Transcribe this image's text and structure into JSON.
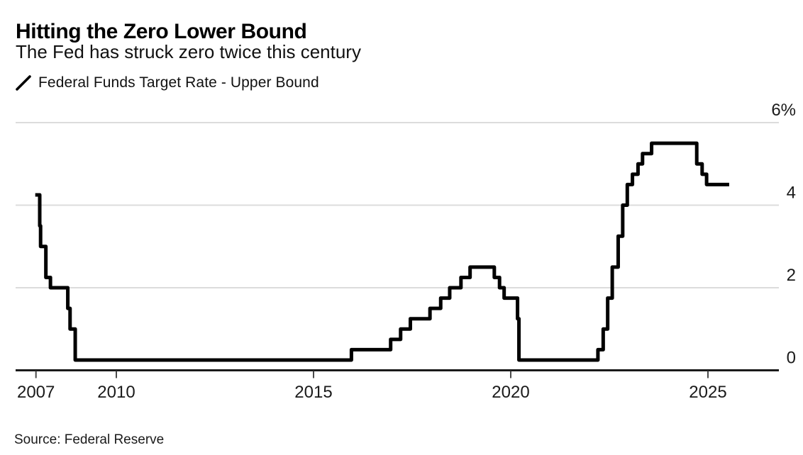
{
  "header": {
    "title": "Hitting the Zero Lower Bound",
    "subtitle": "The Fed has struck zero twice this century"
  },
  "legend": {
    "icon": "line-slash-icon",
    "label": "Federal Funds Target Rate - Upper Bound"
  },
  "footer": {
    "source": "Source: Federal Reserve"
  },
  "chart_data": {
    "type": "line",
    "step": "after",
    "title": "Hitting the Zero Lower Bound",
    "subtitle": "The Fed has struck zero twice this century",
    "legend_entries": [
      "Federal Funds Target Rate - Upper Bound"
    ],
    "source": "Source: Federal Reserve",
    "grid": "horizontal",
    "legend_position": "top-left",
    "ylim": [
      0,
      6
    ],
    "x_domain": [
      "2007-12-11",
      "2025-07-15"
    ],
    "x_ticks": [
      2007,
      2010,
      2015,
      2020,
      2025
    ],
    "y_ticks": [
      {
        "value": 0,
        "label": "0"
      },
      {
        "value": 2,
        "label": "2"
      },
      {
        "value": 4,
        "label": "4"
      },
      {
        "value": 6,
        "label": "6%"
      }
    ],
    "colors": {
      "line": "#000000",
      "grid": "#dcdcdc",
      "baseline": "#1a1a1a",
      "tick": "#4a4a4a",
      "text": "#1a1a1a"
    },
    "series": [
      {
        "name": "Federal Funds Target Rate - Upper Bound",
        "unit": "%",
        "points": [
          [
            "2007-12-11",
            4.25
          ],
          [
            "2008-01-22",
            3.5
          ],
          [
            "2008-01-30",
            3.0
          ],
          [
            "2008-03-18",
            2.25
          ],
          [
            "2008-04-30",
            2.0
          ],
          [
            "2008-10-08",
            1.5
          ],
          [
            "2008-10-29",
            1.0
          ],
          [
            "2008-12-16",
            0.25
          ],
          [
            "2015-12-17",
            0.5
          ],
          [
            "2016-12-15",
            0.75
          ],
          [
            "2017-03-16",
            1.0
          ],
          [
            "2017-06-15",
            1.25
          ],
          [
            "2017-12-14",
            1.5
          ],
          [
            "2018-03-22",
            1.75
          ],
          [
            "2018-06-14",
            2.0
          ],
          [
            "2018-09-27",
            2.25
          ],
          [
            "2018-12-20",
            2.5
          ],
          [
            "2019-08-01",
            2.25
          ],
          [
            "2019-09-19",
            2.0
          ],
          [
            "2019-10-31",
            1.75
          ],
          [
            "2020-03-03",
            1.25
          ],
          [
            "2020-03-16",
            0.25
          ],
          [
            "2022-03-17",
            0.5
          ],
          [
            "2022-05-05",
            1.0
          ],
          [
            "2022-06-16",
            1.75
          ],
          [
            "2022-07-28",
            2.5
          ],
          [
            "2022-09-22",
            3.25
          ],
          [
            "2022-11-03",
            4.0
          ],
          [
            "2022-12-15",
            4.5
          ],
          [
            "2023-02-02",
            4.75
          ],
          [
            "2023-03-23",
            5.0
          ],
          [
            "2023-05-04",
            5.25
          ],
          [
            "2023-07-27",
            5.5
          ],
          [
            "2024-09-19",
            5.0
          ],
          [
            "2024-11-08",
            4.75
          ],
          [
            "2024-12-19",
            4.5
          ],
          [
            "2025-07-15",
            4.5
          ]
        ]
      }
    ]
  }
}
